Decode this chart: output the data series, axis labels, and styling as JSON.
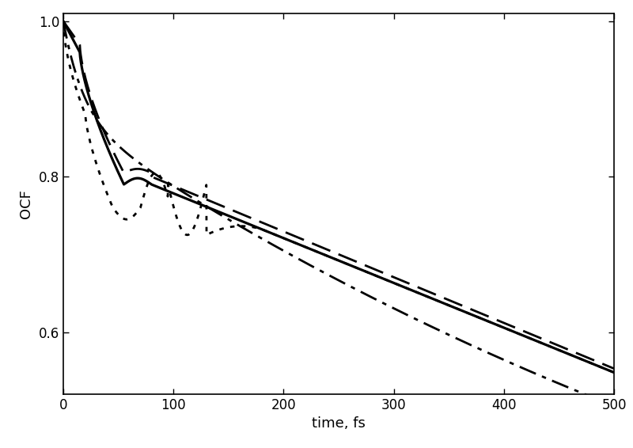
{
  "title": "",
  "xlabel": "time, fs",
  "ylabel": "OCF",
  "xlim": [
    0,
    500
  ],
  "ylim": [
    0.52,
    1.01
  ],
  "yticks": [
    0.6,
    0.8,
    1.0
  ],
  "xticks": [
    0,
    100,
    200,
    300,
    400,
    500
  ],
  "line_color": "#000000",
  "linewidth": 2.0,
  "figsize": [
    8.0,
    5.66
  ],
  "dpi": 100
}
